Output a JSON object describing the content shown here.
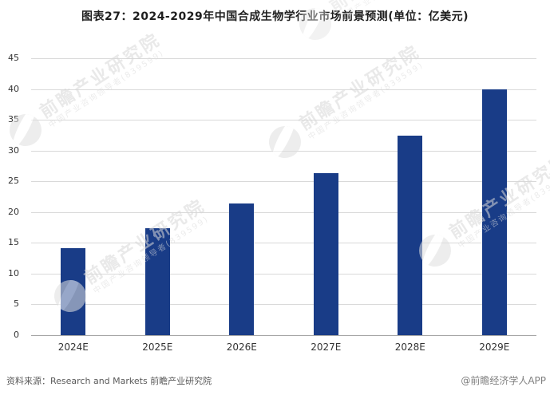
{
  "title": "图表27：2024-2029年中国合成生物学行业市场前景预测(单位：亿美元)",
  "chart_data": {
    "type": "bar",
    "title": "2024-2029年中国合成生物学行业市场前景预测",
    "unit_label": "亿美元",
    "categories": [
      "2024E",
      "2025E",
      "2026E",
      "2027E",
      "2028E",
      "2029E"
    ],
    "values": [
      14.2,
      17.4,
      21.4,
      26.3,
      32.4,
      40.0
    ],
    "xlabel": "",
    "ylabel": "",
    "ylim": [
      0,
      45
    ],
    "yticks": [
      0,
      5,
      10,
      15,
      20,
      25,
      30,
      35,
      40,
      45
    ],
    "grid": true,
    "legend": false,
    "bar_color": "#193c87"
  },
  "watermark": {
    "brand": "前瞻产业研究院",
    "tagline": "中国产业咨询领导者(839599)"
  },
  "footer": {
    "source_label": "资料来源：",
    "source_text": "Research and Markets 前瞻产业研究院",
    "credit": "@前瞻经济学人APP"
  },
  "colors": {
    "bar": "#193c87",
    "gridline": "#d9d9d9",
    "axis_line": "#a6a6a6",
    "tick_text": "#333333",
    "title_text": "#1f1f1f",
    "source_text": "#595959",
    "credit_text": "#808080",
    "watermark": "#d8d8d8"
  }
}
